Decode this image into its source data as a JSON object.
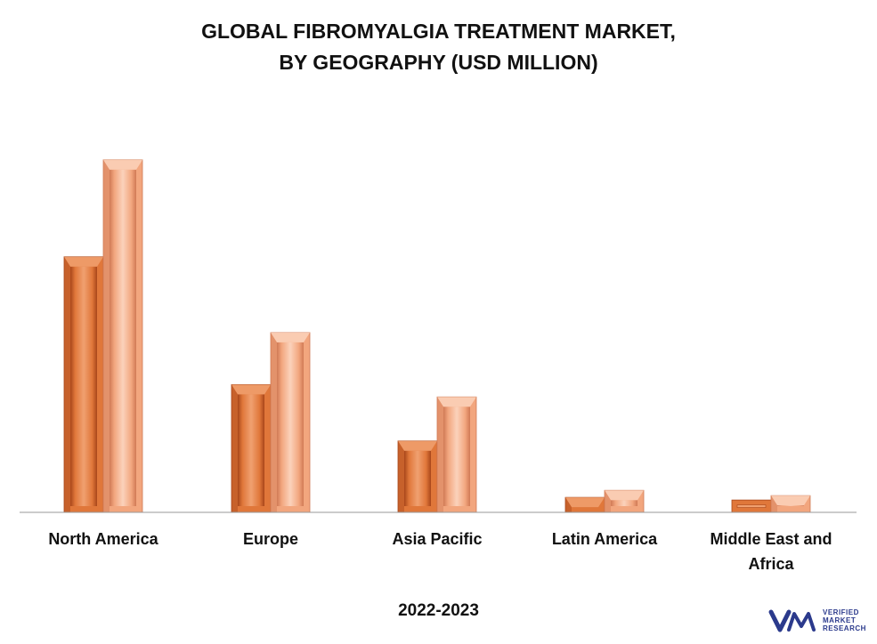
{
  "chart_data": {
    "type": "bar",
    "title_line1": "GLOBAL FIBROMYALGIA TREATMENT MARKET,",
    "title_line2": "BY GEOGRAPHY (USD MILLION)",
    "categories": [
      "North America",
      "Europe",
      "Asia Pacific",
      "Latin America",
      "Middle East and Africa"
    ],
    "series": [
      {
        "values": [
          290,
          145,
          81,
          17,
          14
        ],
        "color": "#e0773a"
      },
      {
        "values": [
          400,
          204,
          131,
          25,
          19
        ],
        "color": "#f2a67e"
      }
    ],
    "xlabel": "2022-2023",
    "ylim": [
      0,
      430
    ],
    "grid": false,
    "legend": "none"
  },
  "logo": {
    "lines": [
      "VERIFIED",
      "MARKET",
      "RESEARCH"
    ],
    "mark": "vmr",
    "color": "#2b3a8c"
  }
}
